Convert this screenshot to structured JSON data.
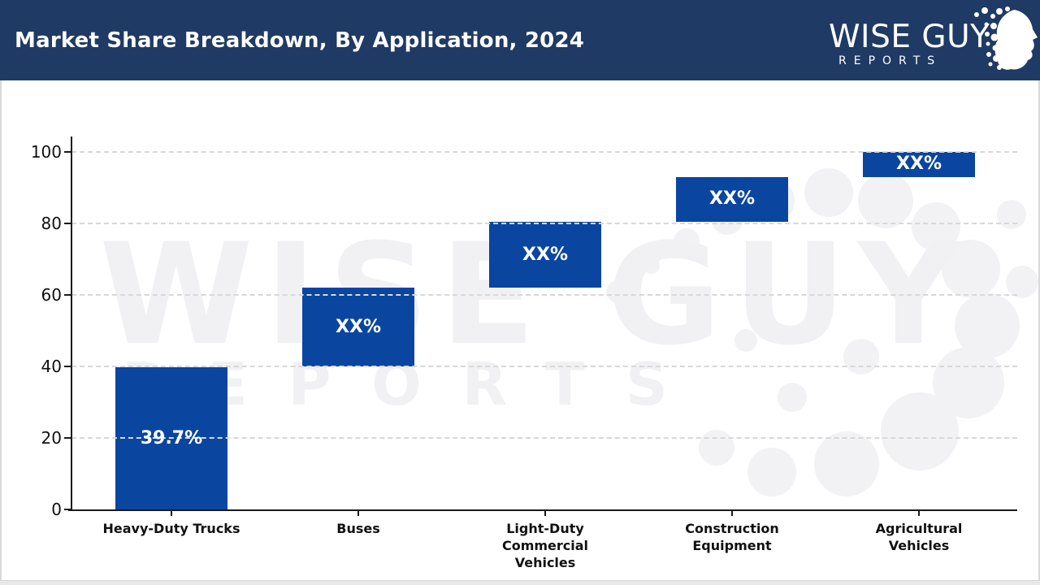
{
  "header": {
    "title": "Market Share Breakdown, By Application, 2024",
    "bg_color": "#1f3a64"
  },
  "logo": {
    "line1": "WISE GUY",
    "line2": "REPORTS"
  },
  "watermark": {
    "line1": "WISE GUY",
    "line2": "REPORTS"
  },
  "chart_data": {
    "type": "bar",
    "variant": "waterfall",
    "title": "Market Share Breakdown, By Application, 2024",
    "categories": [
      "Heavy-Duty Trucks",
      "Buses",
      "Light-Duty\nCommercial\nVehicles",
      "Construction\nEquipment",
      "Agricultural\nVehicles"
    ],
    "series": [
      {
        "name": "Market share (%)",
        "segments": [
          {
            "category": "Heavy-Duty Trucks",
            "start": 0,
            "end": 39.7,
            "label": "39.7%"
          },
          {
            "category": "Buses",
            "start": 40,
            "end": 62,
            "label": "XX%"
          },
          {
            "category": "Light-Duty Commercial Vehicles",
            "start": 62,
            "end": 80.5,
            "label": "XX%"
          },
          {
            "category": "Construction Equipment",
            "start": 80.5,
            "end": 93,
            "label": "XX%"
          },
          {
            "category": "Agricultural Vehicles",
            "start": 93,
            "end": 100,
            "label": "XX%"
          }
        ]
      }
    ],
    "yticks": [
      0,
      20,
      40,
      60,
      80,
      100
    ],
    "ylim": [
      0,
      105
    ],
    "xlabel": "",
    "ylabel": "",
    "grid": {
      "horizontal": true,
      "style": "dashed"
    },
    "legend": "none",
    "colors": {
      "bar": "#0a46a0",
      "bar_label": "#ffffff",
      "grid": "#d8d8d8",
      "axis": "#1a1a1a",
      "header_bg": "#1f3a64",
      "header_text": "#ffffff",
      "watermark": "#f1f1f4"
    }
  }
}
